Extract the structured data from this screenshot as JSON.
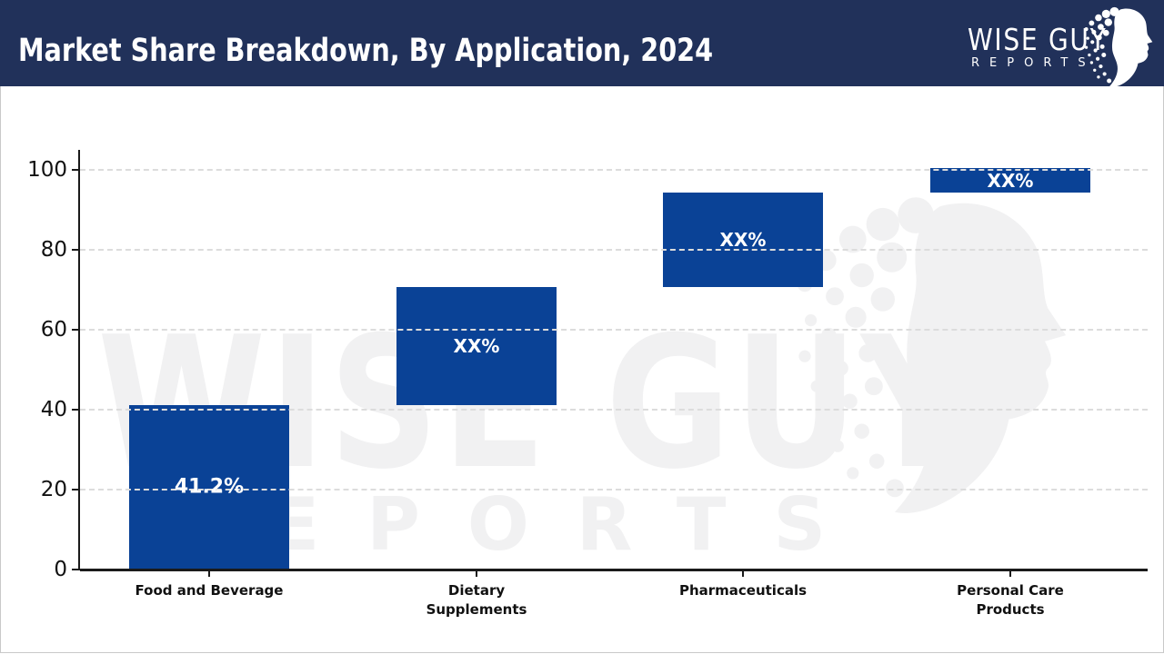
{
  "header": {
    "title": "Market Share Breakdown, By Application, 2024",
    "brand": {
      "name_line1": "WISE GUY",
      "name_line2": "REPORTS"
    }
  },
  "watermark": {
    "line1": "WISE GUY",
    "line2": "REPORTS"
  },
  "chart_data": {
    "type": "bar",
    "variant": "waterfall",
    "title": "Market Share Breakdown, By Application, 2024",
    "categories": [
      [
        "Food and Beverage"
      ],
      [
        "Dietary",
        "Supplements"
      ],
      [
        "Pharmaceuticals"
      ],
      [
        "Personal Care",
        "Products"
      ]
    ],
    "segments": [
      {
        "category": "Food and Beverage",
        "start": 0,
        "end": 41.2,
        "value_label": "41.2%"
      },
      {
        "category": "Dietary Supplements",
        "start": 41.2,
        "end": 70.7,
        "value_label": "XX%"
      },
      {
        "category": "Pharmaceuticals",
        "start": 70.7,
        "end": 94.3,
        "value_label": "XX%"
      },
      {
        "category": "Personal Care Products",
        "start": 94.3,
        "end": 100.4,
        "value_label": "XX%"
      }
    ],
    "yticks": [
      0,
      20,
      40,
      60,
      80,
      100
    ],
    "ylim": [
      0,
      105
    ],
    "xlabel": "",
    "ylabel": "",
    "grid": "horizontal-dashed",
    "legend": "none",
    "colors": {
      "bar": "#0a4296",
      "bar_label": "#ffffff",
      "grid": "#dcdcdc",
      "axis": "#1a1a1a",
      "header_bg": "#21315a",
      "watermark": "#f1f1f2"
    }
  }
}
